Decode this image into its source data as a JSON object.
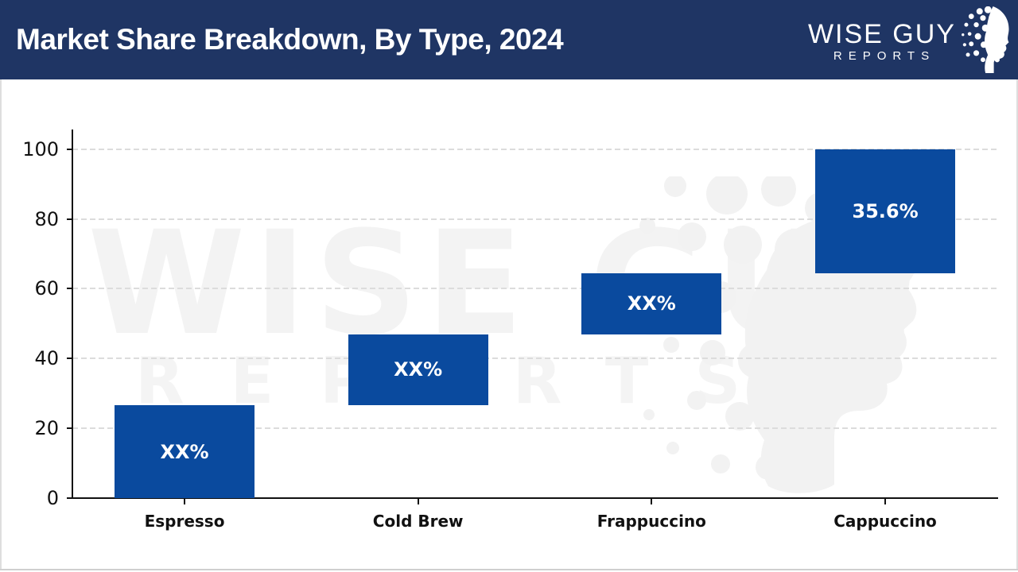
{
  "header": {
    "title": "Market Share Breakdown, By Type, 2024",
    "background": "#1f3564",
    "logo": {
      "primary": "WISE GUY",
      "secondary": "REPORTS"
    }
  },
  "watermark": {
    "primary": "WISE GUY",
    "secondary": "REPORTS"
  },
  "colors": {
    "bar": "#0a4a9e",
    "header_navy": "#1f3564",
    "gridline": "#dcdcdc",
    "axis": "#111111",
    "watermark_gray": "#f3f3f3",
    "bar_label": "#ffffff"
  },
  "chart_data": {
    "type": "bar",
    "subtype": "floating-waterfall",
    "title": "Market Share Breakdown, By Type, 2024",
    "categories": [
      "Espresso",
      "Cold Brew",
      "Frappuccino",
      "Cappuccino"
    ],
    "bars": [
      {
        "category": "Espresso",
        "base": 0,
        "top": 26.6,
        "value": 26.6,
        "value_label": "XX%"
      },
      {
        "category": "Cold Brew",
        "base": 26.6,
        "top": 47.0,
        "value": 20.4,
        "value_label": "XX%"
      },
      {
        "category": "Frappuccino",
        "base": 47.0,
        "top": 64.4,
        "value": 17.4,
        "value_label": "XX%"
      },
      {
        "category": "Cappuccino",
        "base": 64.4,
        "top": 100.0,
        "value": 35.6,
        "value_label": "35.6%"
      }
    ],
    "yticks": [
      0,
      20,
      40,
      60,
      80,
      100
    ],
    "ylim": [
      0,
      105.7
    ],
    "xlabel": "",
    "ylabel": "",
    "grid": "horizontal-dashed",
    "legend": "none"
  }
}
